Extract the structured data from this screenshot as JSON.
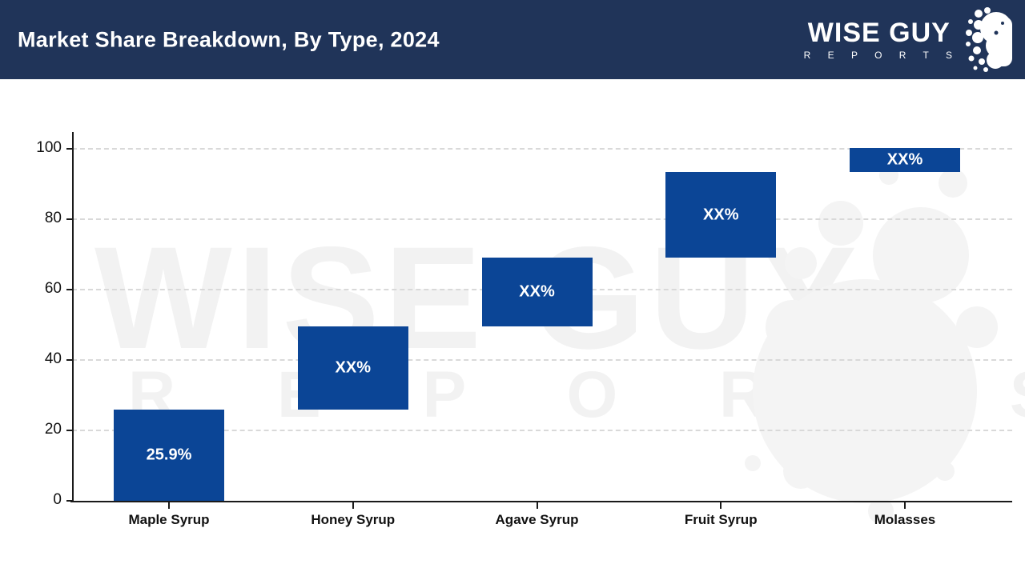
{
  "header": {
    "title": "Market Share Breakdown, By Type, 2024",
    "brand": {
      "line1": "WISE GUY",
      "line2": "R E P O R T S"
    }
  },
  "watermark": {
    "line1": "WISE GUY",
    "line2": "R E P O R T S"
  },
  "colors": {
    "header_bg": "#203459",
    "bar": "#0b4596",
    "grid": "#d9d9d9",
    "axis": "#1a1a1a",
    "watermark": "#f2f2f2",
    "bar_label_text": "#ffffff"
  },
  "chart_data": {
    "type": "bar",
    "subtype": "waterfall",
    "title": "Market Share Breakdown, By Type, 2024",
    "xlabel": "",
    "ylabel": "",
    "categories": [
      "Maple Syrup",
      "Honey Syrup",
      "Agave Syrup",
      "Fruit Syrup",
      "Molasses"
    ],
    "bars": [
      {
        "category": "Maple Syrup",
        "start": 0,
        "end": 25.9,
        "label": "25.9%"
      },
      {
        "category": "Honey Syrup",
        "start": 25.9,
        "end": 49.6,
        "label": "XX%"
      },
      {
        "category": "Agave Syrup",
        "start": 49.6,
        "end": 69.0,
        "label": "XX%"
      },
      {
        "category": "Fruit Syrup",
        "start": 69.0,
        "end": 93.5,
        "label": "XX%"
      },
      {
        "category": "Molasses",
        "start": 93.5,
        "end": 100.3,
        "label": "XX%"
      }
    ],
    "yticks": [
      0,
      20,
      40,
      60,
      80,
      100
    ],
    "ylim": [
      0,
      104
    ],
    "grid": "dashed-horizontal",
    "legend": "none"
  }
}
